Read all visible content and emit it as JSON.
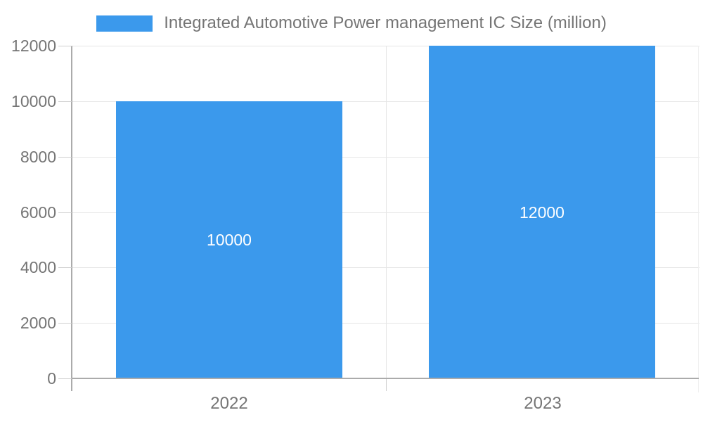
{
  "legend": {
    "label": "Integrated Automotive Power management IC Size (million)"
  },
  "colors": {
    "bar": "#3B99EC",
    "axis_text": "#757575",
    "axis_line": "#ababab",
    "gridline": "#e6e6e6",
    "value_label": "#ffffff",
    "background": "#ffffff"
  },
  "chart_data": {
    "type": "bar",
    "title": "",
    "categories": [
      "2022",
      "2023"
    ],
    "series": [
      {
        "name": "Integrated Automotive Power management IC Size (million)",
        "values": [
          10000,
          12000
        ]
      }
    ],
    "value_labels": [
      "10000",
      "12000"
    ],
    "xlabel": "",
    "ylabel": "",
    "ylim": [
      0,
      12000
    ],
    "yticks": [
      0,
      2000,
      4000,
      6000,
      8000,
      10000,
      12000
    ],
    "ytick_labels": [
      "0",
      "2000",
      "4000",
      "6000",
      "8000",
      "10000",
      "12000"
    ],
    "grid": true,
    "legend_position": "top",
    "bar_color": "#3B99EC"
  }
}
